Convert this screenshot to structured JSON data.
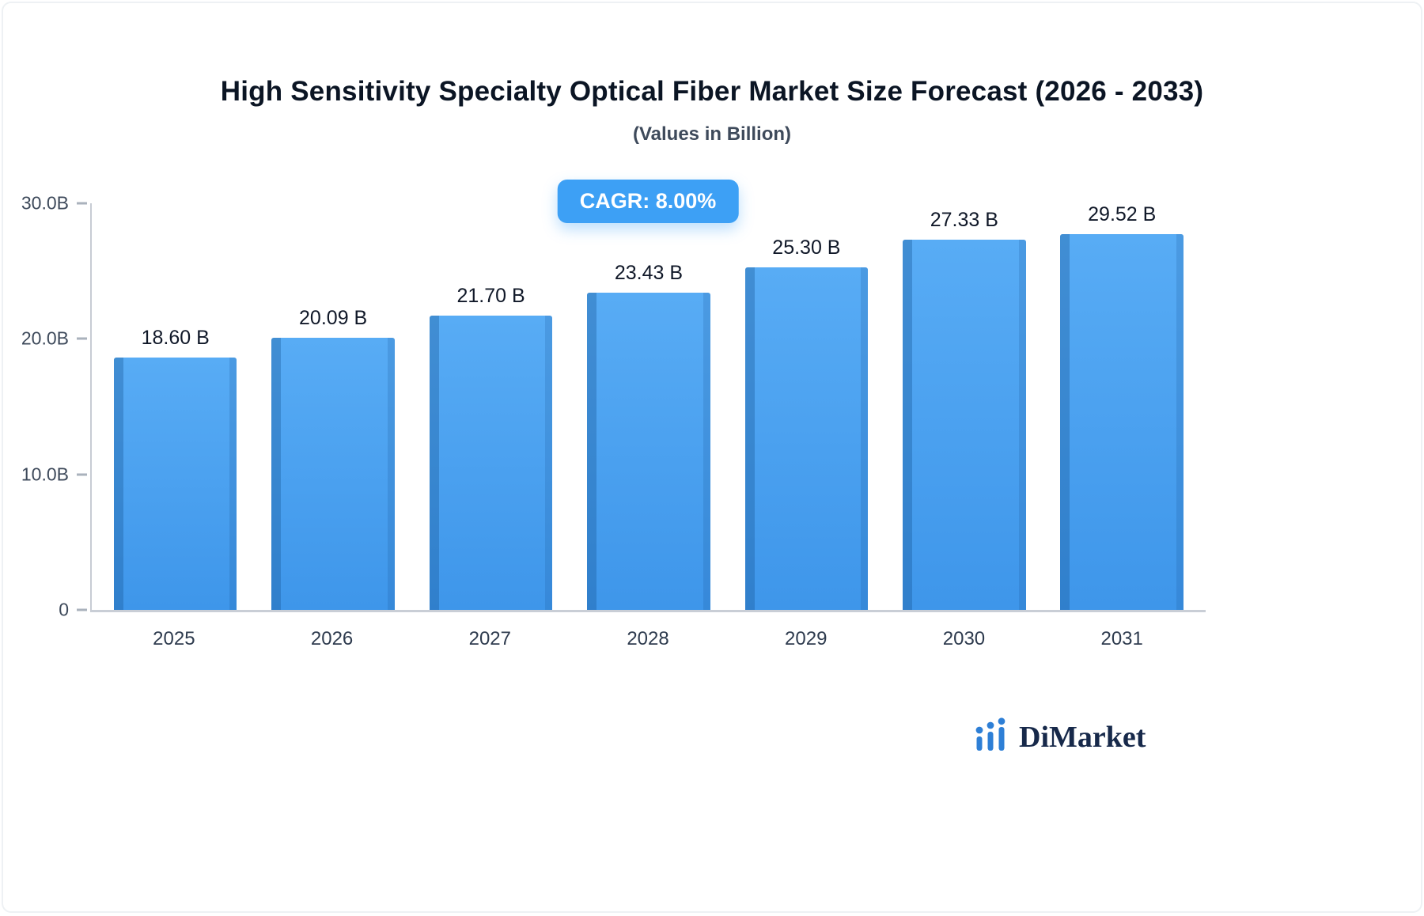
{
  "chart": {
    "title": "High Sensitivity Specialty Optical Fiber Market Size Forecast (2026 - 2033)",
    "subtitle": "(Values in Billion)",
    "cagr_label": "CAGR: 8.00%"
  },
  "chart_data": {
    "type": "bar",
    "categories": [
      "2025",
      "2026",
      "2027",
      "2028",
      "2029",
      "2030",
      "2031"
    ],
    "values": [
      18.6,
      20.09,
      21.7,
      23.43,
      25.3,
      27.33,
      29.52
    ],
    "value_labels": [
      "18.60 B",
      "20.09 B",
      "21.70 B",
      "23.43 B",
      "25.30 B",
      "27.33 B",
      "29.52 B"
    ],
    "title": "High Sensitivity Specialty Optical Fiber Market Size Forecast (2026 - 2033)",
    "xlabel": "",
    "ylabel": "",
    "ylim": [
      0,
      30
    ],
    "yticks": [
      {
        "value": 0,
        "label": "0"
      },
      {
        "value": 10,
        "label": "10.0B"
      },
      {
        "value": 20,
        "label": "20.0B"
      },
      {
        "value": 30,
        "label": "30.0B"
      }
    ],
    "grid": false,
    "legend": false,
    "annotation": "CAGR: 8.00%",
    "bar_color": "#3e96ea",
    "bar_color_light": "#58acf5",
    "bar_side_shade": "#1c5c9a",
    "badge_color": "#3da0f5"
  },
  "footer": {
    "brand": "DiMarket"
  }
}
